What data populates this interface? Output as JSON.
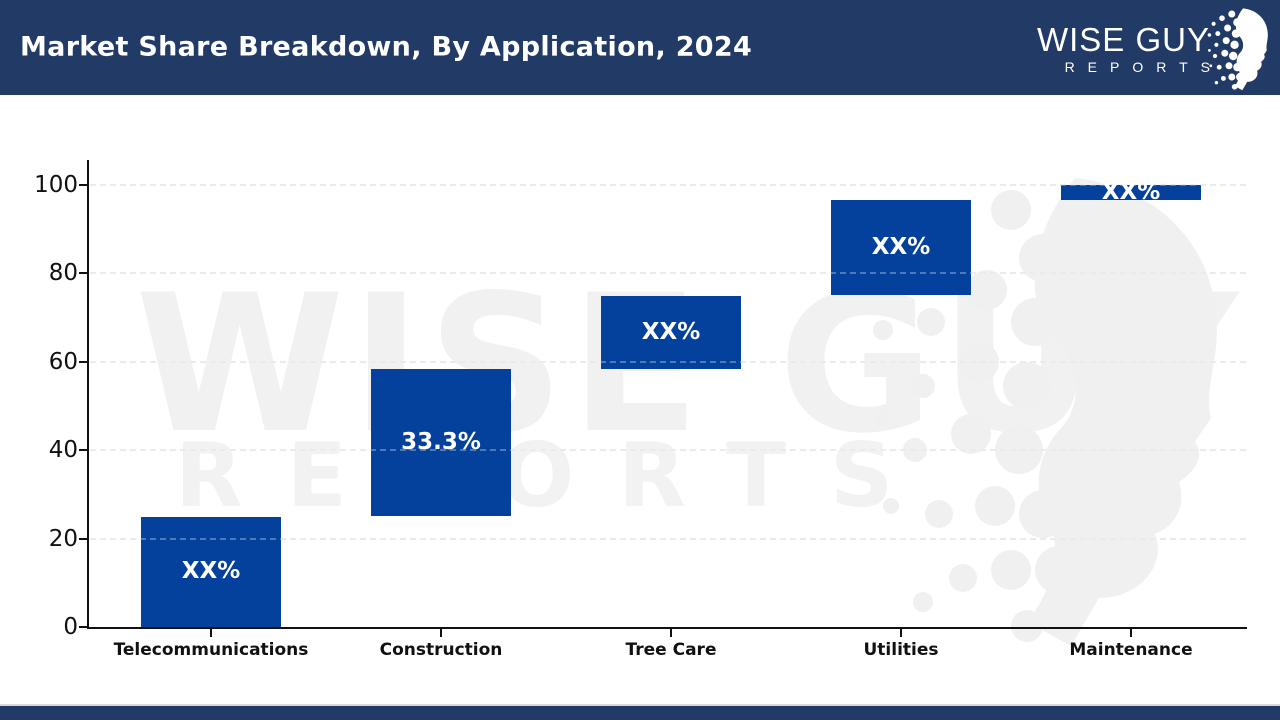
{
  "header": {
    "title": "Market Share Breakdown, By Application, 2024"
  },
  "logo": {
    "line1": "WISE GUY",
    "line2": "REPORTS"
  },
  "watermark": {
    "line1": "WISE GUY",
    "line2": "REPORTS"
  },
  "chart_data": {
    "type": "bar",
    "subtype": "waterfall",
    "title": "Market Share Breakdown, By Application, 2024",
    "categories": [
      "Telecommunications",
      "Construction",
      "Tree Care",
      "Utilities",
      "Maintenance"
    ],
    "series": [
      {
        "name": "Market Share",
        "segments": [
          {
            "start": 0,
            "end": 25
          },
          {
            "start": 25,
            "end": 58.3
          },
          {
            "start": 58.3,
            "end": 75
          },
          {
            "start": 75,
            "end": 96.7
          },
          {
            "start": 96.7,
            "end": 100
          }
        ]
      }
    ],
    "bar_labels": [
      "XX%",
      "33.3%",
      "XX%",
      "XX%",
      "XX%"
    ],
    "ylim": [
      0,
      105
    ],
    "yticks": [
      0,
      20,
      40,
      60,
      80,
      100
    ],
    "xlabel": "",
    "ylabel": "",
    "grid": "horizontal-dashed",
    "legend": "none"
  },
  "colors": {
    "header_bg": "#213a66",
    "footer_bg": "#213a66",
    "bar": "#04419c",
    "grid": "#e3e3e3",
    "axis": "#111111",
    "bar_label": "#ffffff",
    "watermark": "#f1f1f1"
  }
}
